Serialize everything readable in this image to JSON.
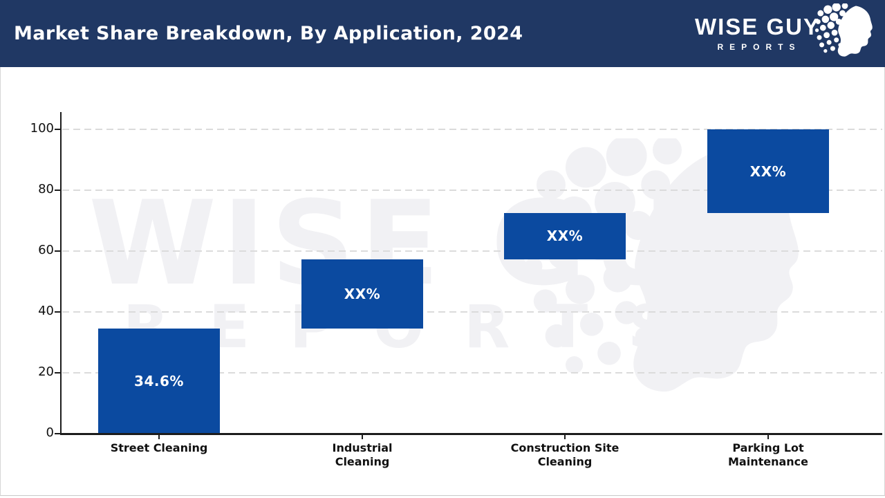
{
  "header": {
    "title": "Market Share Breakdown, By Application, 2024",
    "logo": {
      "line1": "WISE GUY",
      "line2": "REPORTS"
    }
  },
  "watermark": {
    "line1": "WISE GUY",
    "line2": "REPORTS"
  },
  "colors": {
    "header_bg": "#203864",
    "bar": "#0b4aa0",
    "grid": "#dbdbdb",
    "axis": "#1c1c1c",
    "bar_label": "#ffffff",
    "watermark": "#f1f1f4"
  },
  "chart_data": {
    "type": "bar",
    "subtype": "floating-stacked-percentage",
    "title": "Market Share Breakdown, By Application, 2024",
    "categories": [
      "Street Cleaning",
      "Industrial Cleaning",
      "Construction Site Cleaning",
      "Parking Lot Maintenance"
    ],
    "category_lines": [
      [
        "Street Cleaning"
      ],
      [
        "Industrial",
        "Cleaning"
      ],
      [
        "Construction Site",
        "Cleaning"
      ],
      [
        "Parking Lot",
        "Maintenance"
      ]
    ],
    "series": [
      {
        "name": "Market Share (%)",
        "ranges": [
          [
            0,
            34.6
          ],
          [
            34.6,
            57.3
          ],
          [
            57.3,
            72.5
          ],
          [
            72.5,
            100
          ]
        ]
      }
    ],
    "bar_labels": [
      "34.6%",
      "XX%",
      "XX%",
      "XX%"
    ],
    "xlabel": "",
    "ylabel": "",
    "ylim": [
      0,
      100
    ],
    "yticks": [
      0,
      20,
      40,
      60,
      80,
      100
    ],
    "grid": "horizontal-dashed",
    "legend": "none"
  }
}
